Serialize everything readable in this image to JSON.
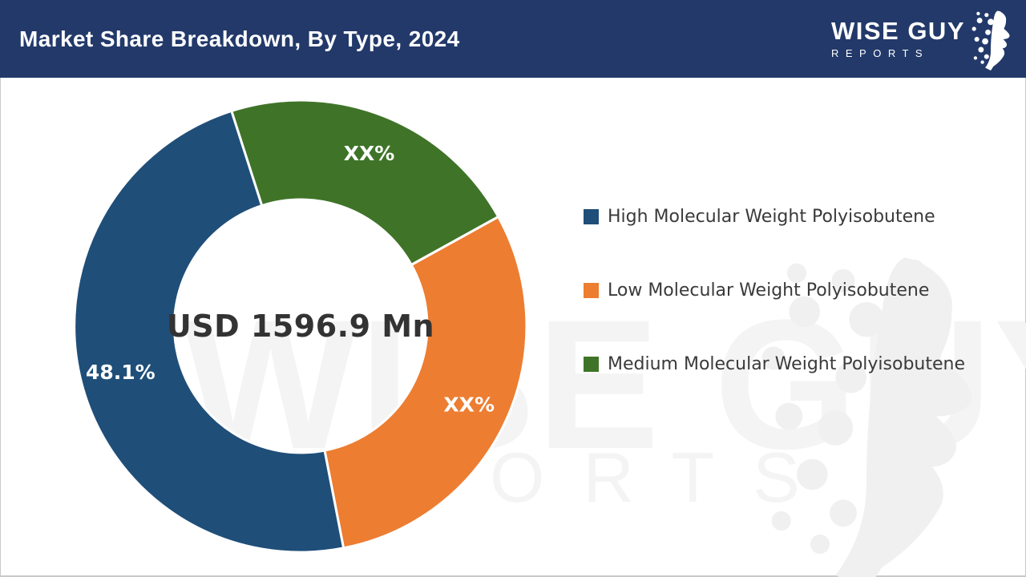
{
  "header": {
    "title": "Market Share Breakdown, By Type, 2024",
    "logo_line1": "WISE GUY",
    "logo_line2": "REPORTS"
  },
  "watermark": {
    "line1": "WISE GUY",
    "line2": "REPORTS"
  },
  "chart_data": {
    "type": "pie",
    "subtype": "donut",
    "title": "Market Share Breakdown, By Type, 2024",
    "center_label": "USD 1596.9 Mn",
    "start_angle_deg": -17.8,
    "legend_position": "right",
    "slices": [
      {
        "name": "Medium Molecular Weight Polyisobutene",
        "display_label": "XX%",
        "share_pct_est": 21.9,
        "color": "#3f7428"
      },
      {
        "name": "Low Molecular Weight Polyisobutene",
        "display_label": "XX%",
        "share_pct_est": 30.0,
        "color": "#ed7d31"
      },
      {
        "name": "High Molecular Weight Polyisobutene",
        "display_label": "48.1%",
        "share_pct_est": 48.1,
        "color": "#1f4e79"
      }
    ],
    "legend": [
      {
        "label": "High Molecular Weight Polyisobutene",
        "color": "#1f4e79"
      },
      {
        "label": "Low Molecular Weight Polyisobutene",
        "color": "#ed7d31"
      },
      {
        "label": "Medium Molecular Weight Polyisobutene",
        "color": "#3f7428"
      }
    ]
  },
  "colors": {
    "header_bg": "#22396a",
    "content_border": "#c9c9c9",
    "center_text": "#333333",
    "legend_text": "#3a3a3a",
    "watermark": "#f4f4f4",
    "slice_label": "#ffffff"
  }
}
